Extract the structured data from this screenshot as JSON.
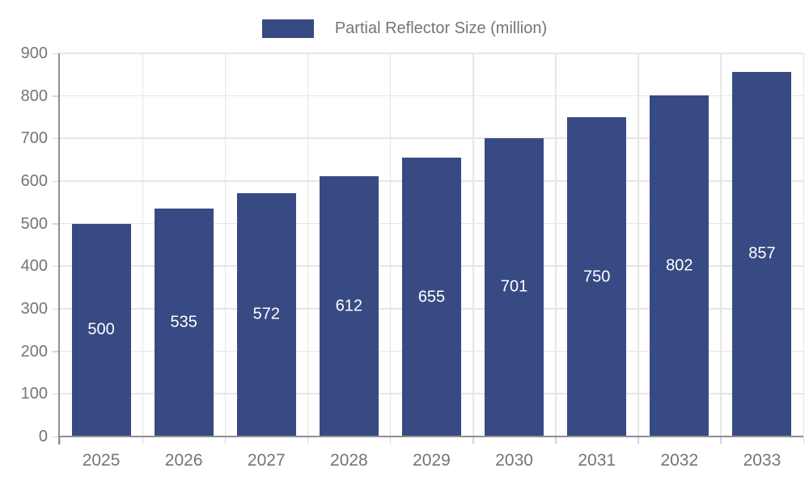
{
  "legend": {
    "label": "Partial Reflector Size (million)"
  },
  "chart_data": {
    "type": "bar",
    "title": "",
    "categories": [
      "2025",
      "2026",
      "2027",
      "2028",
      "2029",
      "2030",
      "2031",
      "2032",
      "2033"
    ],
    "series": [
      {
        "name": "Partial Reflector Size (million)",
        "values": [
          500,
          535,
          572,
          612,
          655,
          701,
          750,
          802,
          857
        ]
      }
    ],
    "value_labels": [
      "500",
      "535",
      "572",
      "612",
      "655",
      "701",
      "750",
      "802",
      "857"
    ],
    "xlabel": "",
    "ylabel": "",
    "ylim": [
      0,
      900
    ],
    "yticks": [
      0,
      100,
      200,
      300,
      400,
      500,
      600,
      700,
      800,
      900
    ],
    "grid": true,
    "legend_position": "top-center",
    "colors": {
      "bar": "#384a83",
      "grid": "#e6e6e6",
      "axis": "#8f8f8f",
      "tick": "#d2d4dc",
      "tick_label": "#757575",
      "value_label": "#ffffff",
      "background": "#ffffff"
    }
  }
}
